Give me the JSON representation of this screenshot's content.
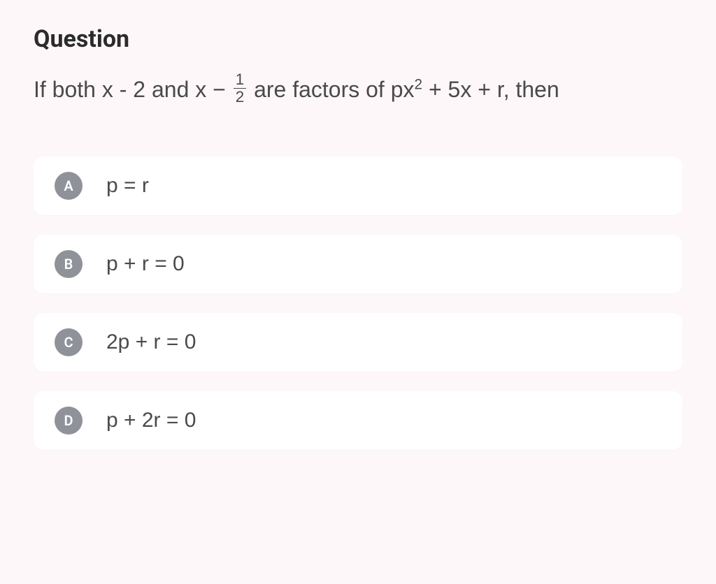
{
  "heading": "Question",
  "prompt": {
    "pre": "If both x - 2 and x − ",
    "frac_num": "1",
    "frac_den": "2",
    "mid": " are factors of px",
    "sup": "2",
    "post": " + 5x + r, then"
  },
  "options": [
    {
      "letter": "A",
      "text": "p = r"
    },
    {
      "letter": "B",
      "text": "p + r = 0"
    },
    {
      "letter": "C",
      "text": "2p + r = 0"
    },
    {
      "letter": "D",
      "text": "p + 2r = 0"
    }
  ],
  "style": {
    "background": "#fdf7fa",
    "card_background": "#ffffff",
    "badge_background": "#8f9299",
    "badge_text": "#ffffff",
    "heading_color": "#2b2b2b",
    "body_color": "#4a4a4a",
    "heading_fontsize": 34,
    "prompt_fontsize": 32,
    "option_fontsize": 30,
    "badge_diameter": 40,
    "card_radius": 14
  }
}
